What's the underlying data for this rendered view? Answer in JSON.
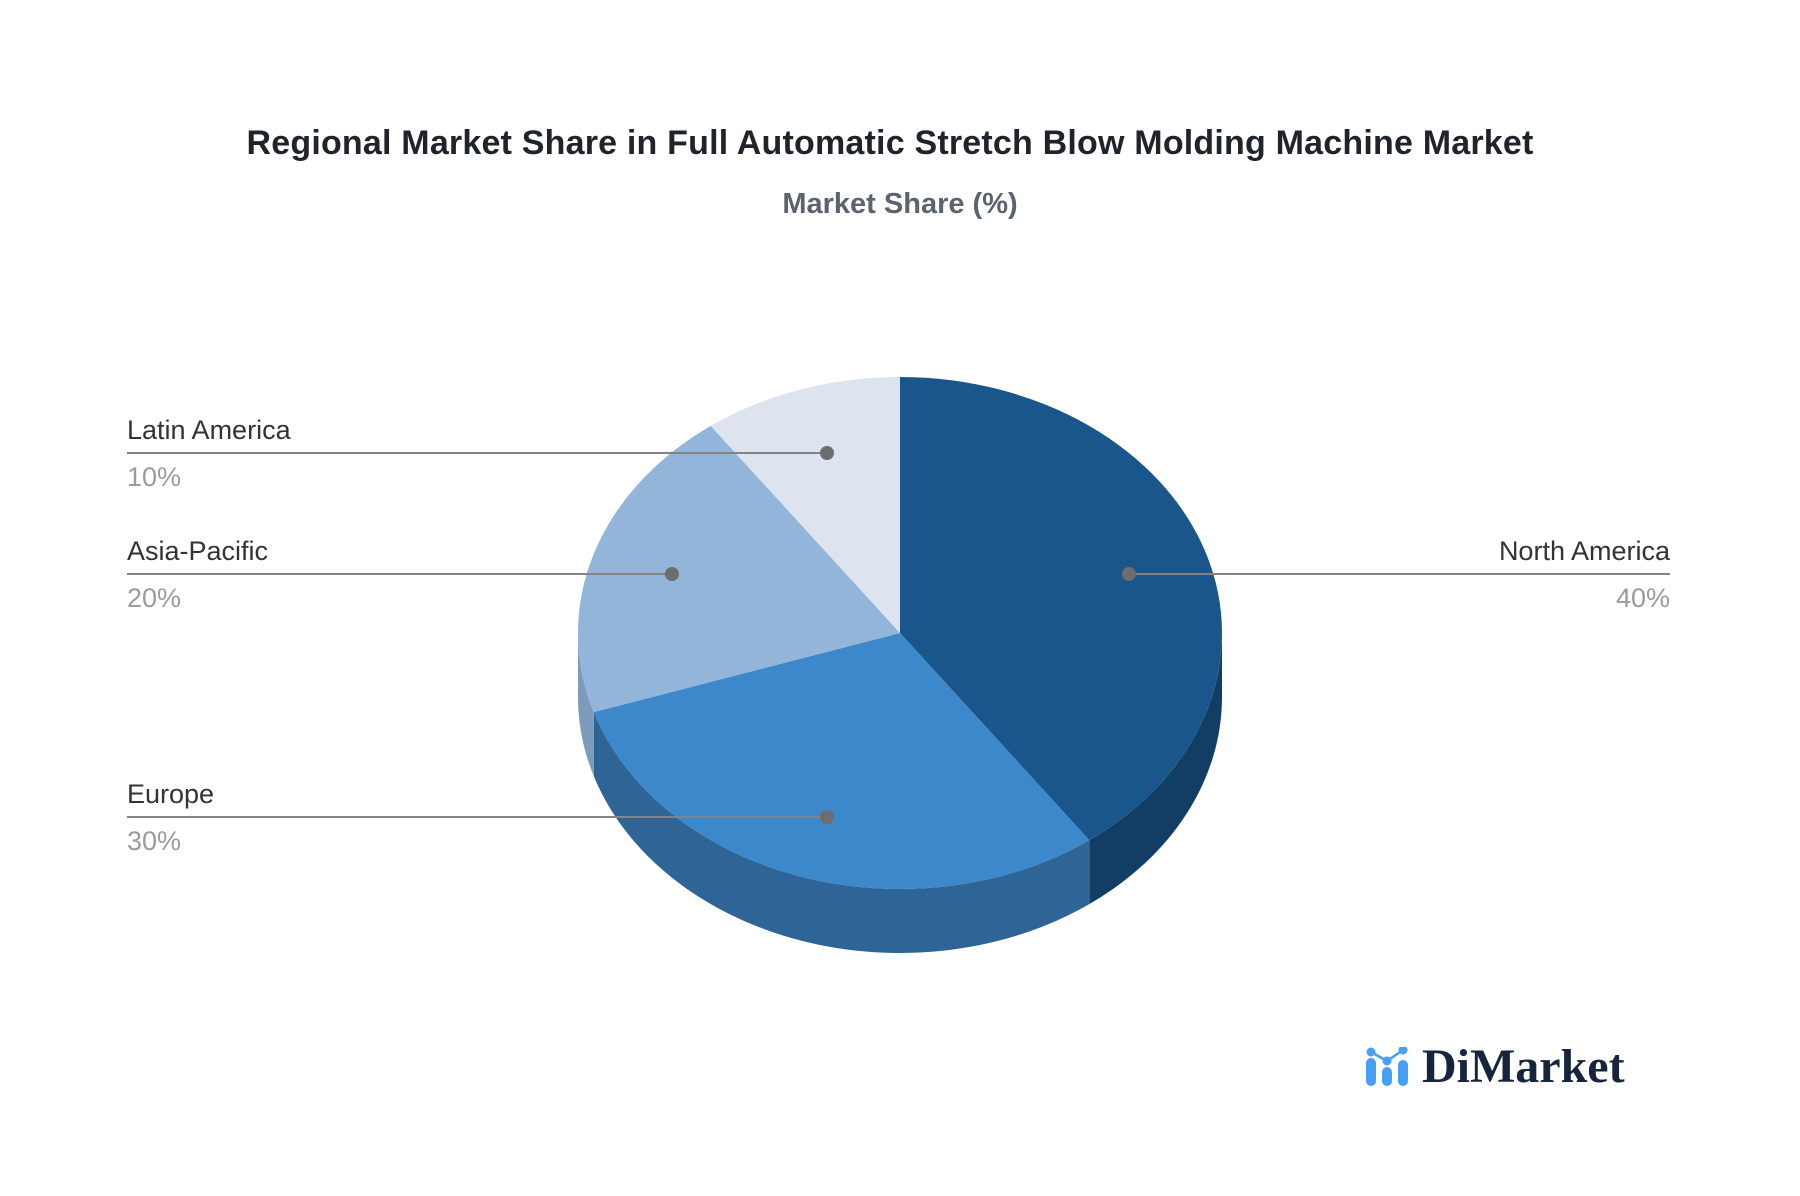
{
  "chart_data": {
    "type": "pie",
    "style": "3d",
    "title": "Regional Market Share in Full Automatic Stretch Blow Molding Machine Market",
    "subtitle": "Market Share (%)",
    "unit": "%",
    "direction": "clockwise",
    "start_angle_deg_from_top": 0,
    "legend": "none",
    "categories": [
      "North America",
      "Europe",
      "Asia-Pacific",
      "Latin America"
    ],
    "values": [
      40,
      30,
      20,
      10
    ],
    "slices": [
      {
        "label": "North America",
        "value": 40,
        "pct_label": "40%",
        "color": "#1A568C",
        "side_color": "#123E66",
        "callout_side": "right"
      },
      {
        "label": "Europe",
        "value": 30,
        "pct_label": "30%",
        "color": "#3C88CA",
        "side_color": "#2E6596",
        "callout_side": "left"
      },
      {
        "label": "Asia-Pacific",
        "value": 20,
        "pct_label": "20%",
        "color": "#93B5D9",
        "side_color": "#7E9BBC",
        "callout_side": "left"
      },
      {
        "label": "Latin America",
        "value": 10,
        "pct_label": "10%",
        "color": "#DEE4EF",
        "side_color": "#B9C3D4",
        "callout_side": "left"
      }
    ],
    "callout_style": {
      "label_color": "#333333",
      "pct_color": "#9b9b9b",
      "line_color": "#848484",
      "dot_color": "#6d6d6d"
    }
  },
  "branding": {
    "logo_text": "DiMarket",
    "logo_icon": "bar-line-chart-icon",
    "logo_icon_color": "#47A0F5",
    "logo_text_color": "#16243C"
  }
}
